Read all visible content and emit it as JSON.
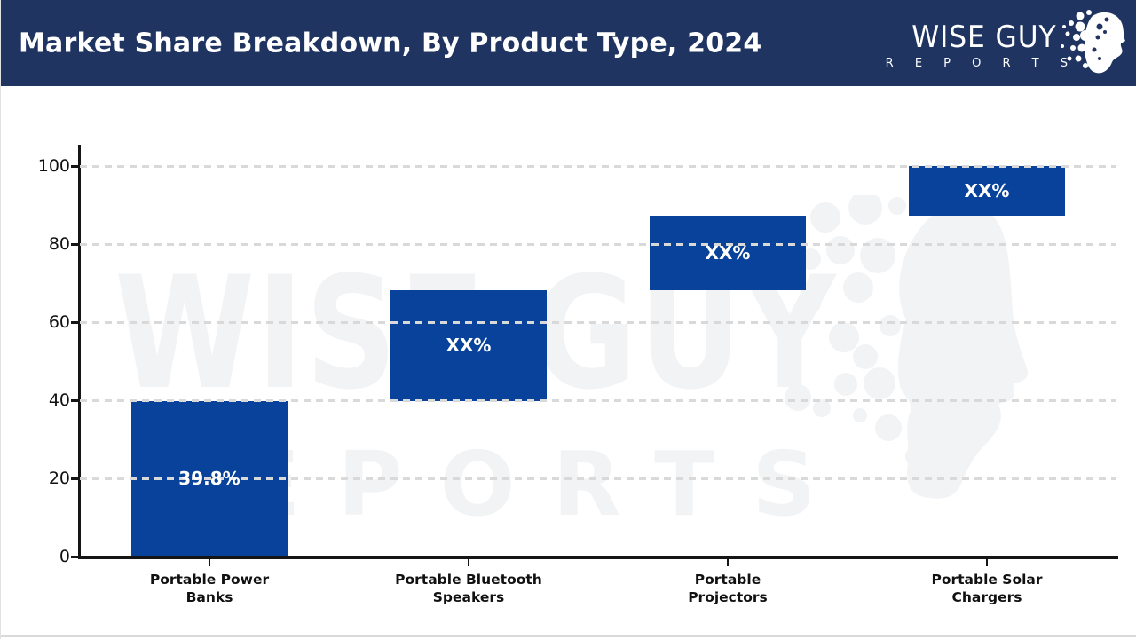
{
  "header": {
    "title": "Market Share Breakdown, By Product Type, 2024",
    "bg_color": "#1f3461",
    "logo": {
      "line1": "WISE GUY",
      "line2": "R E P O R T S",
      "face_icon": "dotted-head-profile"
    }
  },
  "watermark": {
    "line1": "WISE GUY",
    "line2": "REPORTS",
    "color": "#f2f3f5",
    "face_icon": "dotted-head-profile"
  },
  "chart_data": {
    "type": "bar",
    "subtype": "waterfall",
    "title": "Market Share Breakdown, By Product Type, 2024",
    "categories": [
      "Portable Power Banks",
      "Portable Bluetooth Speakers",
      "Portable Projectors",
      "Portable Solar Chargers"
    ],
    "category_label_lines": [
      [
        "Portable Power",
        "Banks"
      ],
      [
        "Portable Bluetooth",
        "Speakers"
      ],
      [
        "Portable",
        "Projectors"
      ],
      [
        "Portable Solar",
        "Chargers"
      ]
    ],
    "bars": [
      {
        "category": "Portable Power Banks",
        "start": 0,
        "end": 39.8,
        "value": 39.8,
        "label": "39.8%"
      },
      {
        "category": "Portable Bluetooth Speakers",
        "start": 39.8,
        "end": 68.2,
        "value": 28.4,
        "label": "XX%"
      },
      {
        "category": "Portable Projectors",
        "start": 68.2,
        "end": 87.3,
        "value": 19.1,
        "label": "XX%"
      },
      {
        "category": "Portable Solar Chargers",
        "start": 87.3,
        "end": 100,
        "value": 12.7,
        "label": "XX%"
      }
    ],
    "yticks": [
      0,
      20,
      40,
      60,
      80,
      100
    ],
    "ylim": [
      0,
      100
    ],
    "xlabel": "",
    "ylabel": "",
    "grid": true,
    "grid_style": "dashed",
    "grid_over_bars": true,
    "bar_color": "#08429b",
    "bar_label_color": "#ffffff",
    "axis_color": "#151515",
    "grid_color": "#d9d9d9",
    "legend": "none"
  }
}
